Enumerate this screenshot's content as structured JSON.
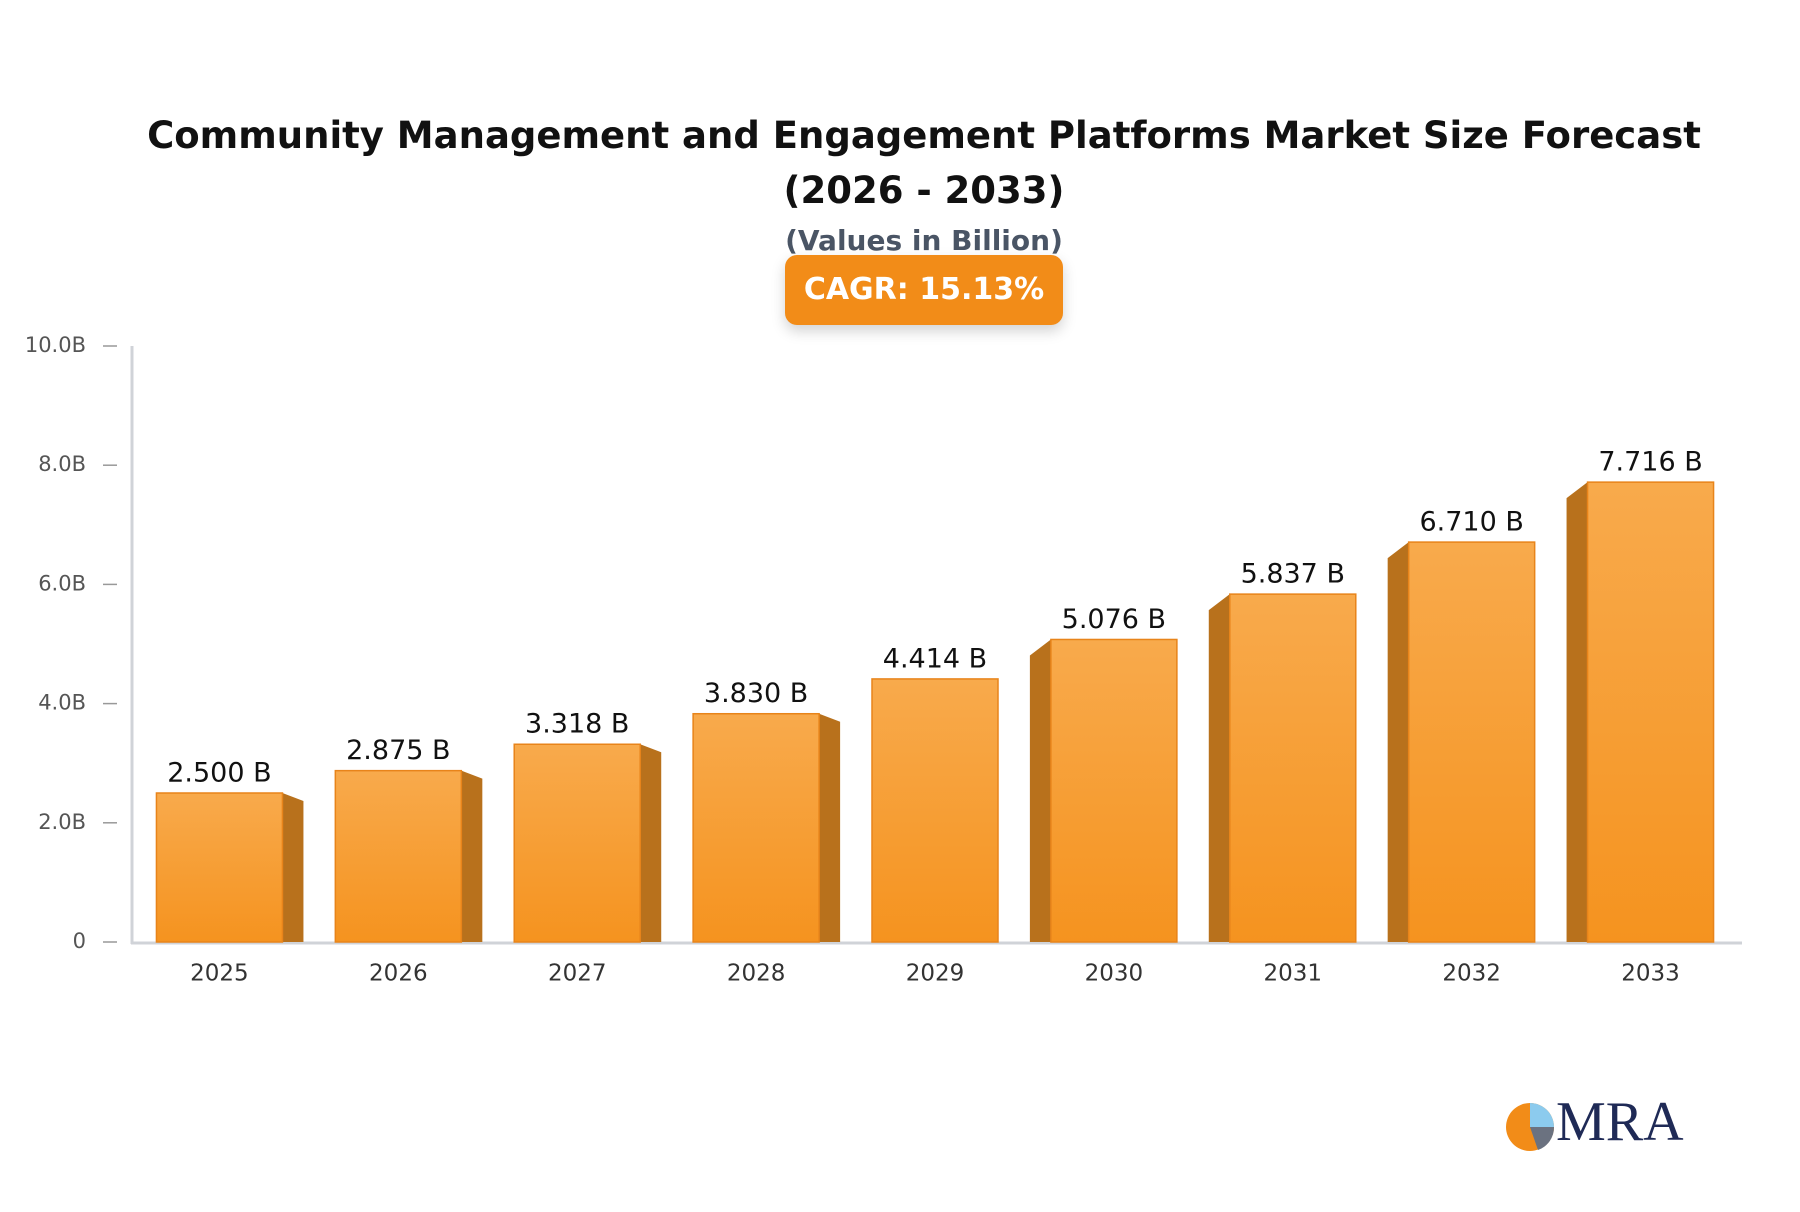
{
  "chart_data": {
    "type": "bar",
    "title": "Community Management and Engagement Platforms Market Size Forecast (2026 - 2033)",
    "subtitle": "(Values in Billion)",
    "annotation": "CAGR: 15.13%",
    "categories": [
      "2025",
      "2026",
      "2027",
      "2028",
      "2029",
      "2030",
      "2031",
      "2032",
      "2033"
    ],
    "values": [
      2.5,
      2.875,
      3.318,
      3.83,
      4.414,
      5.076,
      5.837,
      6.71,
      7.716
    ],
    "value_labels": [
      "2.500 B",
      "2.875 B",
      "3.318 B",
      "3.830 B",
      "4.414 B",
      "5.076 B",
      "5.837 B",
      "6.710 B",
      "7.716 B"
    ],
    "color": "#f5961f",
    "ylim": [
      0,
      10
    ],
    "yticks": [
      0,
      {
        "value": 2,
        "label": "2.0B"
      },
      {
        "value": 4,
        "label": "4.0B"
      },
      {
        "value": 6,
        "label": "6.0B"
      },
      {
        "value": 8,
        "label": "8.0B"
      },
      {
        "value": 10,
        "label": "10.0B"
      }
    ],
    "grid": false,
    "logo": "MRA"
  }
}
